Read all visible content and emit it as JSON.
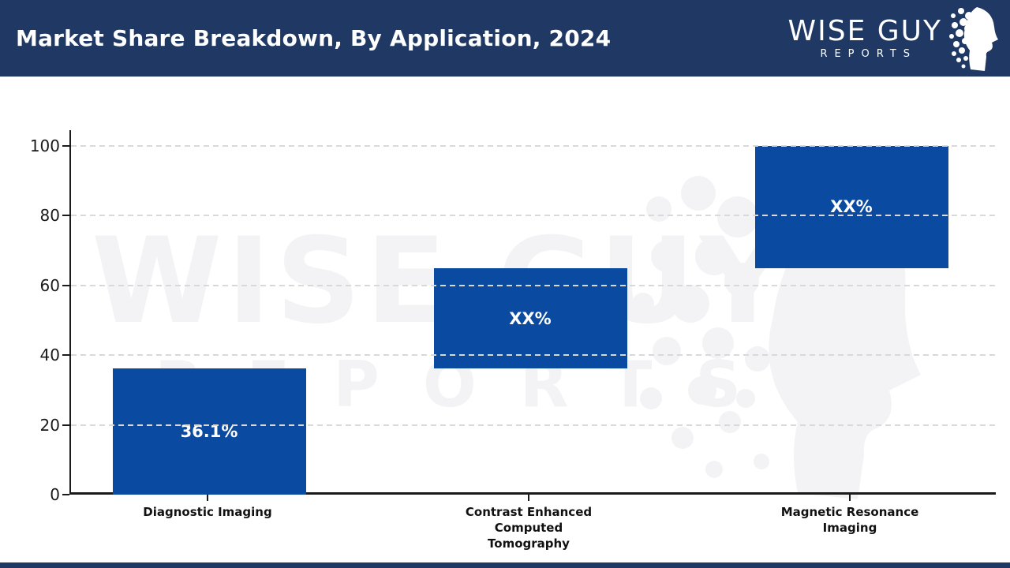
{
  "header": {
    "title": "Market Share Breakdown, By Application, 2024",
    "logo": {
      "brand": "WISE GUY",
      "sub": "REPORTS"
    }
  },
  "watermark": {
    "brand": "WISE GUY",
    "sub": "REPORTS"
  },
  "colors": {
    "header_bg": "#1f3864",
    "bar": "#0a4aa0",
    "bar_label": "#ffffff",
    "gridline": "#d9d9d9",
    "axis": "#1a1a1a",
    "watermark": "#f3f3f5"
  },
  "chart_data": {
    "type": "bar",
    "subtype": "floating waterfall segments",
    "title": "Market Share Breakdown, By Application, 2024",
    "categories": [
      "Diagnostic Imaging",
      "Contrast Enhanced\nComputed\nTomography",
      "Magnetic Resonance\nImaging"
    ],
    "series": [
      {
        "name": "Market share (%)",
        "segments": [
          {
            "category": "Diagnostic Imaging",
            "start": 0,
            "end": 36.1,
            "label": "36.1%"
          },
          {
            "category": "Contrast Enhanced Computed Tomography",
            "start": 36.1,
            "end": 65,
            "label": "XX%"
          },
          {
            "category": "Magnetic Resonance Imaging",
            "start": 65,
            "end": 100,
            "label": "XX%"
          }
        ]
      }
    ],
    "xlabel": "",
    "ylabel": "",
    "ylim": [
      0,
      104.5
    ],
    "yticks": [
      0,
      20,
      40,
      60,
      80,
      100
    ],
    "grid": "horizontal dashed",
    "legend": "none"
  }
}
